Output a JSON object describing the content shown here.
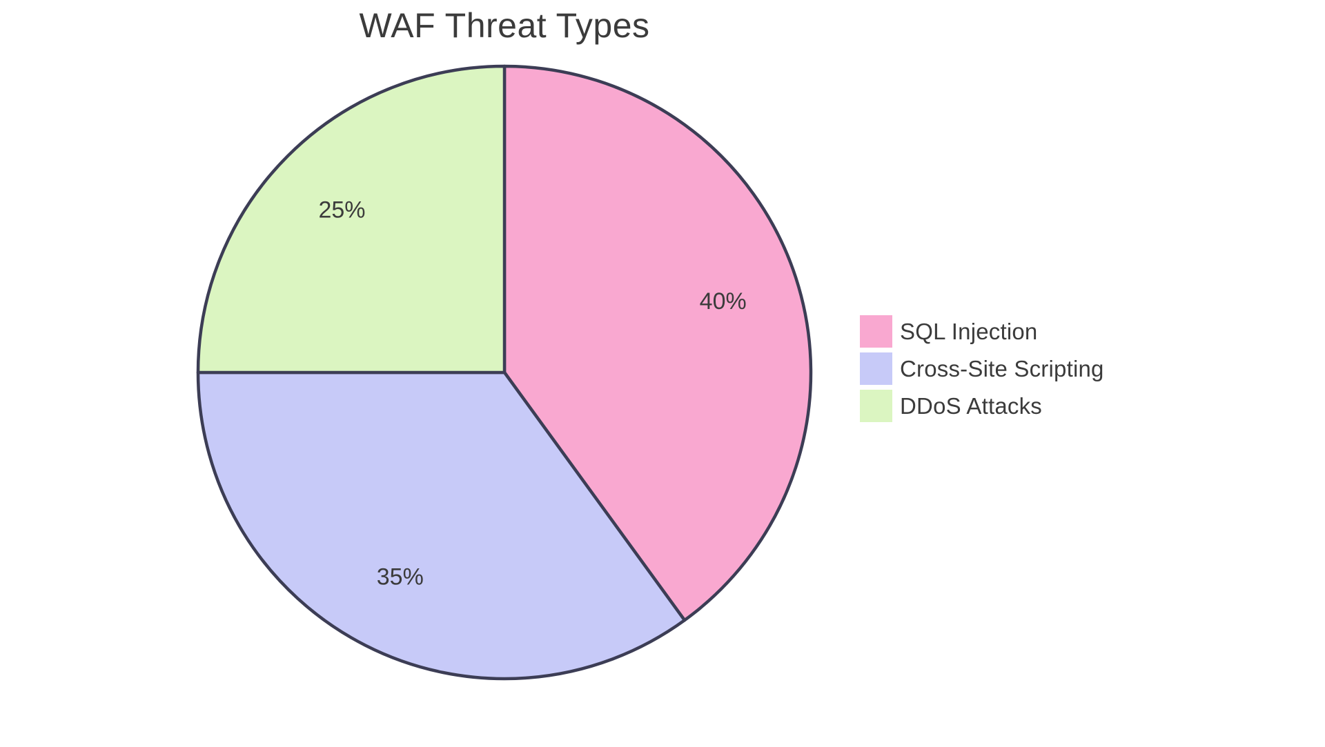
{
  "chart_data": {
    "type": "pie",
    "title": "WAF Threat Types",
    "categories": [
      "SQL Injection",
      "Cross-Site Scripting",
      "DDoS Attacks"
    ],
    "values": [
      40,
      35,
      25
    ],
    "slices": [
      {
        "label": "SQL Injection",
        "value_pct": 40,
        "pct_label": "40%",
        "color": "#F9A8D0"
      },
      {
        "label": "Cross-Site Scripting",
        "value_pct": 35,
        "pct_label": "35%",
        "color": "#C7CAF8"
      },
      {
        "label": "DDoS Attacks",
        "value_pct": 25,
        "pct_label": "25%",
        "color": "#DBF5C1"
      }
    ],
    "start_angle": "12 o'clock",
    "direction": "clockwise",
    "edge_color": "#3C3D55",
    "label_color": "#3B3B3B",
    "title_color": "#3B3B3B",
    "legend_position": "right",
    "background": "#FFFFFF"
  }
}
